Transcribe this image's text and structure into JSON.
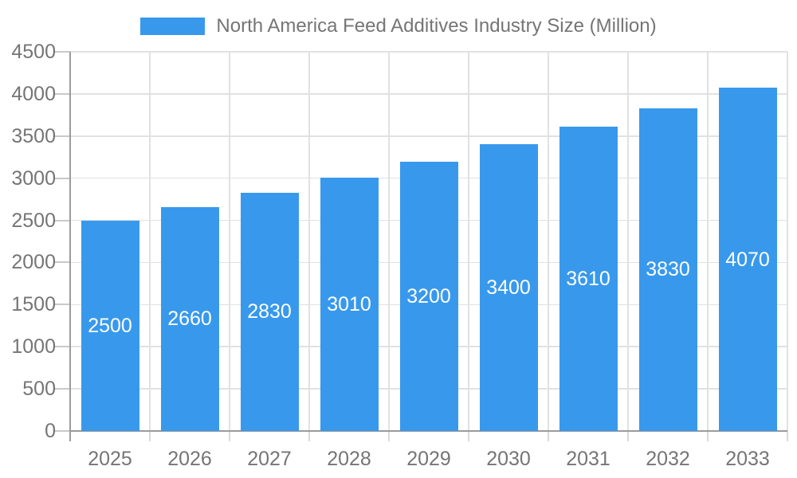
{
  "legend": {
    "label": "North America Feed Additives Industry Size (Million)"
  },
  "chart_data": {
    "type": "bar",
    "title": "North America Feed Additives Industry Size (Million)",
    "categories": [
      "2025",
      "2026",
      "2027",
      "2028",
      "2029",
      "2030",
      "2031",
      "2032",
      "2033"
    ],
    "values": [
      2500,
      2660,
      2830,
      3010,
      3200,
      3400,
      3610,
      3830,
      4070
    ],
    "data_labels": [
      "2500",
      "2660",
      "2830",
      "3010",
      "3200",
      "3400",
      "3610",
      "3830",
      "4070"
    ],
    "xlabel": "",
    "ylabel": "",
    "ylim": [
      0,
      4500
    ],
    "ytick_step": 500,
    "ytick_labels": [
      "0",
      "500",
      "1000",
      "1500",
      "2000",
      "2500",
      "3000",
      "3500",
      "4000",
      "4500"
    ],
    "grid": true,
    "legend_position": "top",
    "bar_color": "#3899EC",
    "data_label_color": "#FFFFFF",
    "axis_text_color": "#757575",
    "grid_color": "#E1E1E1",
    "axis_line_color": "#9B9B9B",
    "background_color": "#FFFFFF"
  }
}
